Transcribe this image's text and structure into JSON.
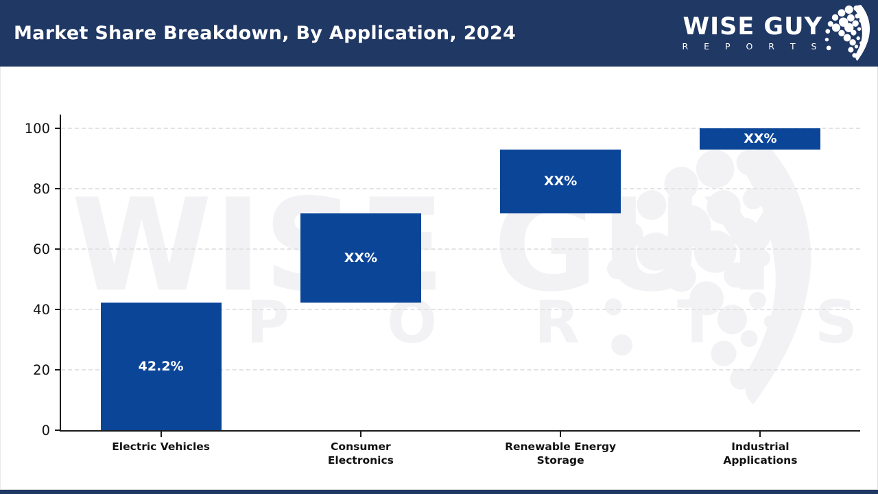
{
  "header": {
    "title": "Market Share Breakdown, By Application, 2024",
    "logo": {
      "line1": "WISE GUY",
      "line2": "R E P O R T S"
    }
  },
  "watermark": {
    "line1": "WISE GUY",
    "line2": "P O R T S"
  },
  "chart_data": {
    "type": "bar",
    "variant": "floating-segment-breakdown",
    "title": "Market Share Breakdown, By Application, 2024",
    "categories": [
      [
        "Electric Vehicles"
      ],
      [
        "Consumer",
        "Electronics"
      ],
      [
        "Renewable Energy",
        "Storage"
      ],
      [
        "Industrial",
        "Applications"
      ]
    ],
    "segments": [
      {
        "category": "Electric Vehicles",
        "label": "42.2%",
        "start": 0,
        "end": 42.2
      },
      {
        "category": "Consumer Electronics",
        "label": "XX%",
        "start": 42.2,
        "end": 71.8
      },
      {
        "category": "Renewable Energy Storage",
        "label": "XX%",
        "start": 71.8,
        "end": 93.0
      },
      {
        "category": "Industrial Applications",
        "label": "XX%",
        "start": 93.0,
        "end": 100.0
      }
    ],
    "yticks": [
      0,
      20,
      40,
      60,
      80,
      100
    ],
    "ylim": [
      0,
      100
    ],
    "xlabel": "",
    "ylabel": "",
    "legend": "none",
    "grid": "dashed-horizontal"
  },
  "colors": {
    "header_bg": "#203864",
    "bar": "#0b4598",
    "bar_label": "#ffffff",
    "grid": "#e3e3e3",
    "axis": "#1a1a1a",
    "watermark": "#f2f2f4"
  }
}
